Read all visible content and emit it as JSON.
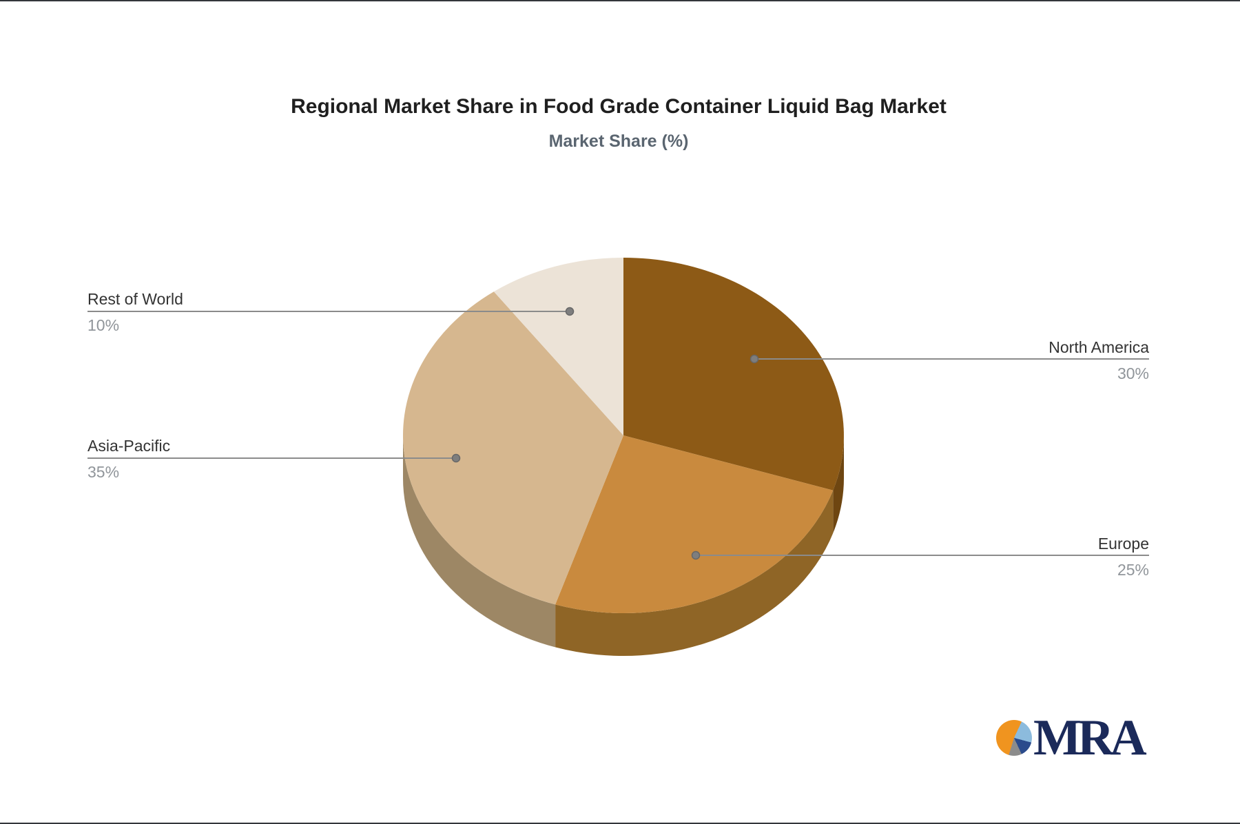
{
  "page": {
    "background": "#ffffff",
    "edge_line_color": "#33363b"
  },
  "header": {
    "title": "Regional Market Share in Food Grade Container Liquid Bag Market",
    "subtitle": "Market Share (%)",
    "title_color": "#1f1f1f",
    "subtitle_color": "#5a6570"
  },
  "chart_data": {
    "type": "pie",
    "style": "3d",
    "title": "Regional Market Share in Food Grade Container Liquid Bag Market",
    "subtitle": "Market Share (%)",
    "unit": "%",
    "start_angle_deg": 0,
    "direction": "clockwise",
    "legend_position": "callout-labels",
    "categories": [
      "North America",
      "Europe",
      "Asia-Pacific",
      "Rest of World"
    ],
    "values": [
      30,
      25,
      35,
      10
    ],
    "slices": [
      {
        "label": "North America",
        "value": 30,
        "pct_label": "30%",
        "color": "#8D5A16",
        "side_color": "#6E4611"
      },
      {
        "label": "Europe",
        "value": 25,
        "pct_label": "25%",
        "color": "#C98A3E",
        "side_color": "#8F6526"
      },
      {
        "label": "Asia-Pacific",
        "value": 35,
        "pct_label": "35%",
        "color": "#D6B78F",
        "side_color": "#9D8765"
      },
      {
        "label": "Rest of World",
        "value": 10,
        "pct_label": "10%",
        "color": "#ECE3D7",
        "side_color": "#C9BCA9"
      }
    ],
    "label_name_color": "#333333",
    "label_pct_color": "#90959a",
    "leader_line_color": "#8b8b8b",
    "leader_dot_fill": "#7e7e7e",
    "leader_dot_stroke": "#676767"
  },
  "logo": {
    "text": "MRA",
    "text_color": "#1b2a5a",
    "icon_colors": {
      "orange": "#F0941F",
      "light_blue": "#8CBBDD",
      "navy": "#2B4B8C",
      "gray": "#8C8C8C"
    }
  }
}
